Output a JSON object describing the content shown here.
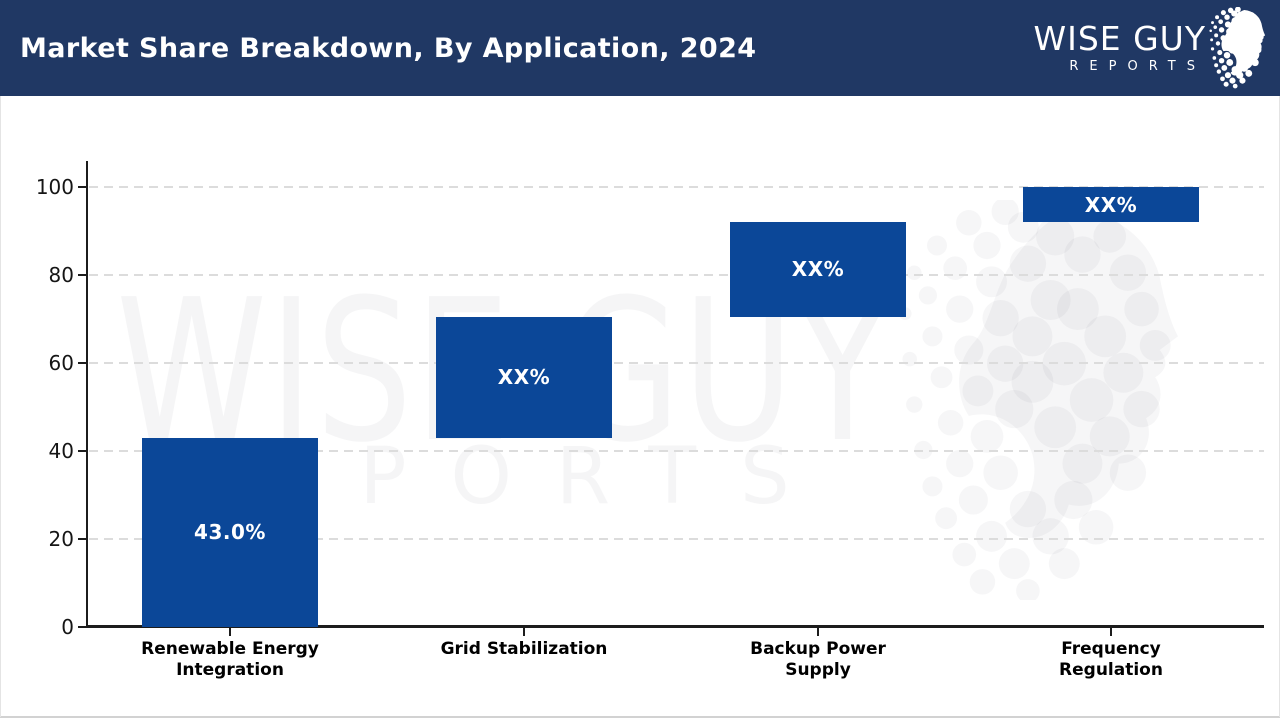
{
  "header": {
    "title": "Market Share Breakdown, By Application, 2024",
    "logo": {
      "name": "WISE GUY",
      "sub": "REPORTS"
    }
  },
  "watermark": {
    "line1": "WISE GUY",
    "line2": "REPORTS"
  },
  "chart_data": {
    "type": "bar",
    "subtype": "waterfall-market-share",
    "title": "Market Share Breakdown, By Application, 2024",
    "categories": [
      {
        "lines": [
          "Renewable Energy",
          "Integration"
        ]
      },
      {
        "lines": [
          "Grid Stabilization"
        ]
      },
      {
        "lines": [
          "Backup Power",
          "Supply"
        ]
      },
      {
        "lines": [
          "Frequency",
          "Regulation"
        ]
      }
    ],
    "segments": [
      {
        "start": 0,
        "end": 43,
        "label": "43.0%"
      },
      {
        "start": 43,
        "end": 70.5,
        "label": "XX%"
      },
      {
        "start": 70.5,
        "end": 92,
        "label": "XX%"
      },
      {
        "start": 92,
        "end": 100,
        "label": "XX%"
      }
    ],
    "xlabel": "",
    "ylabel": "",
    "yticks": [
      0,
      20,
      40,
      60,
      80,
      100
    ],
    "ylim": [
      0,
      106
    ],
    "grid": true,
    "legend": false,
    "bar_color": "#0b4798",
    "bar_label_color": "#ffffff"
  },
  "colors": {
    "header_bg": "#203864",
    "axis": "#1c1c1c",
    "gridline": "#dcdcdc",
    "frame_line": "#d2d2d2"
  }
}
